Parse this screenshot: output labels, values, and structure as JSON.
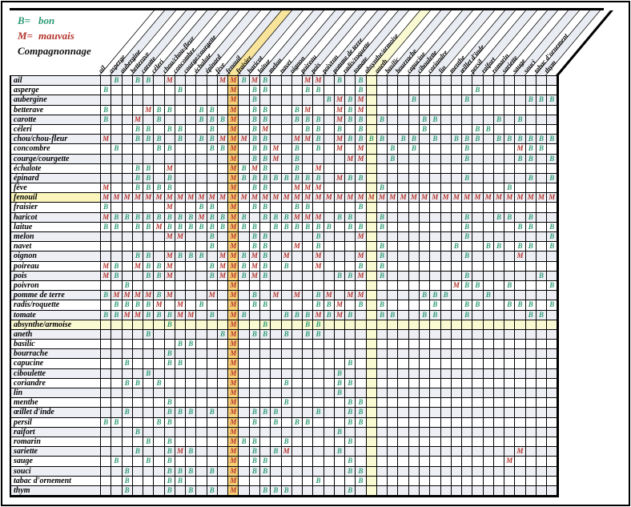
{
  "legend": {
    "bon_symbol": "B=",
    "bon_label": "bon",
    "mauvais_symbol": "M=",
    "mauvais_label": "mauvais",
    "title": "Compagnonnage"
  },
  "colors": {
    "bon": "#2e9b74",
    "mauvais": "#b5342c",
    "fenouil_column_bg": "#f6cf76",
    "absynthe_highlight_bg": "#fafad2",
    "row_stripe_bg": "#edeff5",
    "grid": "#000000"
  },
  "chart_data": {
    "type": "matrix",
    "title": "Compagnonnage",
    "legend": {
      "B": "bon",
      "M": "mauvais"
    },
    "plants": [
      "ail",
      "asperge",
      "aubergine",
      "betterave",
      "carotte",
      "céleri",
      "chou/chou-fleur",
      "concombre",
      "courge/courgette",
      "échalote",
      "épinard",
      "fève",
      "fenouil",
      "fraisier",
      "haricot",
      "laitue",
      "melon",
      "navet",
      "oignon",
      "poireau",
      "pois",
      "poivron",
      "pomme de terre",
      "radis/roquette",
      "tomate",
      "absynthe/armoise",
      "aneth",
      "basilic",
      "bourrache",
      "capucine",
      "ciboulette",
      "coriandre",
      "lin",
      "menthe",
      "œillet d'inde",
      "persil",
      "raifort",
      "romarin",
      "sariette",
      "sauge",
      "souci",
      "tabac d'ornement",
      "thym"
    ],
    "highlighted": {
      "fenouil_index": 13,
      "absynthe_index": 26
    },
    "cell_encoding": "one string per row; 43 chars; '.'=empty, 'B'=bon, 'M'=mauvais",
    "values": [
      ".B.BB.M....MMBMB...MM.B.B..................",
      "B......B....M.BB...BB...B..........B.......",
      "............M.B......BMBM....B....B.....BBB",
      "B...MBB..BB.M.BB..BM..MBM..................",
      "B..M.B...BBBM.BB..BBB.MBB.B...BB.....B.B...",
      "...BB.BB..B.M.BM...BB.B.B.....B....BB......",
      "M..BBB.B.BBMMMBB..MMB.MBBBB.BB.B.BBB.BBBBBB",
      ".B...BB...BBM.BBM.B.B.M.M..B.B....B....MBB.",
      "............M.BBM.B....MM..B......B....BB.B",
      "...BB.M.....MBMB..B.M......................",
      "...BB.B.....MBBBBBBBB.MBB.........B.....B.B",
      "M..BBBB.....M.BB..MMM.....B...........B....",
      "MMMMMMMMMMMMMMMMMMMMMMMMMMMMMMMMMMMMMMMMMMM",
      "B.....M..BB.M.BB..BB....B..................",
      "MBBBBBBBBMBBMB.BBBMMM.BB..B.......B..BB.B..",
      "BB.BBMBBBBBBMBB.BBBBBB.BB.B.......B....BB.B",
      "......MM..B.M.BB....B...M.........B.......B",
      "..........B.M.BB..M.B.....B......B..BB.BB.B",
      "...BB.MBBB.MMBMB.M..M...M.B.......B....M...",
      "MB.MBBM...BMMBMB.B..M...B.B................",
      "MB..BBM...BMMBMB......BBM.B.......B......B.",
      "..B.........M....................MBB..B...B",
      "BMMMMBM...M.M.B.M.M.BM.MM.....BBB...B......",
      ".BBBBM.M.B..M.BB....BBM.B.B....B..BB..BBB.B",
      "BBMMBBBMM.B.MB...BBBMBMB..BB..BB..B.....BB.",
      "......B.....M..B...BB......................",
      "....B......BM.BB.B.BB......................",
      ".......BB...M..............................",
      "......B.....M..............................",
      "..B...BB....M..........B...................",
      "....B.......M.........B....................",
      "..BB.B......M....B....BB...................",
      "............M.........B....................",
      "......B.....M....B.....BB..................",
      "..B...BBB.B.M.BBB...B..BB..................",
      "BB...BB.....M.B.B.BB...BB..................",
      "...B........M.........B....................",
      "....B.B.....MBB..B.....B...................",
      "...B..BMB...M.B.BM....B................M...",
      ".B..B.B.....M.BB.......B..............M....",
      "..B...BBB.B.M.BB.......BB..................",
      "..B...BB....M.......B...B..................",
      "..B...B.B.B.M..BBB.....B..................."
    ]
  }
}
